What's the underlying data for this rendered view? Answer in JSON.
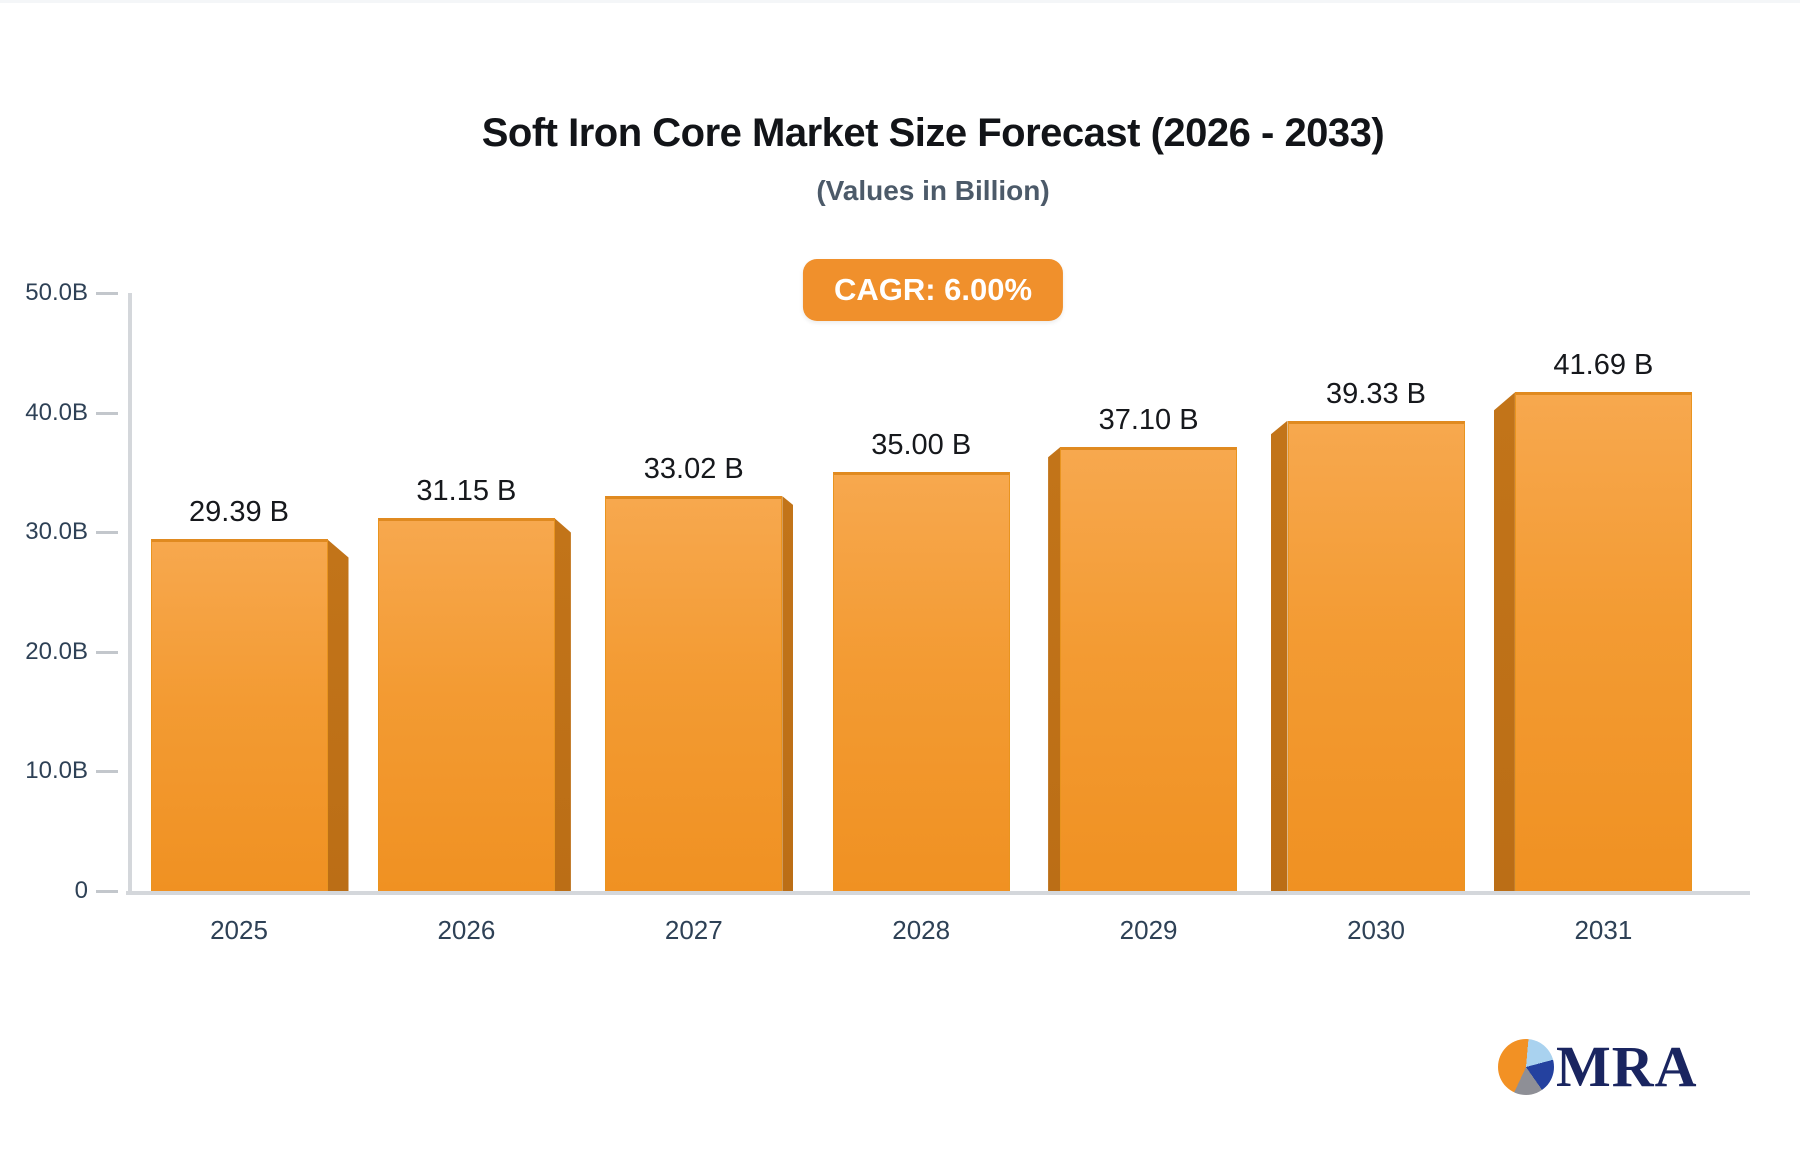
{
  "chart_data": {
    "type": "bar",
    "title": "Soft Iron Core Market Size Forecast (2026 - 2033)",
    "subtitle": "(Values in Billion)",
    "badge_label": "CAGR: 6.00%",
    "categories": [
      "2025",
      "2026",
      "2027",
      "2028",
      "2029",
      "2030",
      "2031"
    ],
    "values": [
      29.39,
      31.15,
      33.02,
      35.0,
      37.1,
      39.33,
      41.69
    ],
    "value_labels": [
      "29.39 B",
      "31.15 B",
      "33.02 B",
      "35.00 B",
      "37.10 B",
      "39.33 B",
      "41.69 B"
    ],
    "xlabel": "",
    "ylabel": "",
    "ylim": [
      0,
      50
    ],
    "y_tick_values": [
      0,
      10,
      20,
      30,
      40,
      50
    ],
    "y_tick_labels": [
      "0",
      "10.0B",
      "20.0B",
      "30.0B",
      "40.0B",
      "50.0B"
    ],
    "grid": false,
    "legend": "none",
    "bar_style": "3d-perspective",
    "bar_color": "#f09122",
    "bar_side_color": "#bd6f1a",
    "badge_color": "#f0902c",
    "axis_color": "#d4d7db",
    "tick_label_color": "#2e4156"
  },
  "logo": {
    "text": "MRA",
    "text_color": "#1a2560",
    "pie_colors": {
      "orange": "#f29124",
      "light_blue": "#a9d2ef",
      "navy": "#24419f",
      "gray": "#8e8f96"
    }
  }
}
